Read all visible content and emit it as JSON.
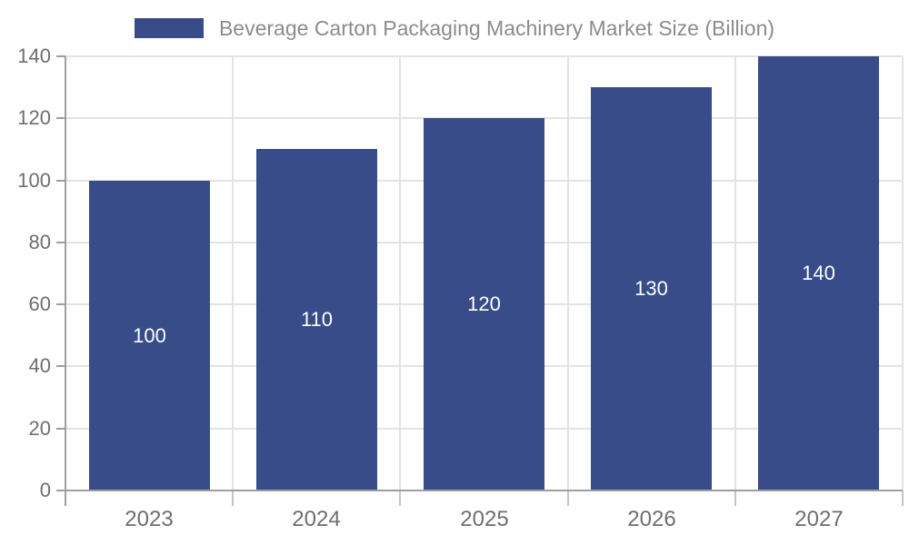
{
  "chart_data": {
    "type": "bar",
    "title": "",
    "legend_label": "Beverage Carton Packaging Machinery Market Size (Billion)",
    "legend_position": "top-center",
    "categories": [
      "2023",
      "2024",
      "2025",
      "2026",
      "2027"
    ],
    "values": [
      100,
      110,
      120,
      130,
      140
    ],
    "bar_labels": [
      "100",
      "110",
      "120",
      "130",
      "140"
    ],
    "xlabel": "",
    "ylabel": "",
    "ylim": [
      0,
      140
    ],
    "yticks": [
      0,
      20,
      40,
      60,
      80,
      100,
      120,
      140
    ],
    "grid": true,
    "colors": {
      "bar": "#374C88",
      "bar_label_text": "#ffffff",
      "legend_text": "#8c8c8c",
      "tick_text": "#6e6e6e",
      "gridline": "#e3e3e3",
      "axis_line": "#9e9e9e",
      "minor_tick": "#c4c4c4",
      "background": "#ffffff"
    }
  }
}
